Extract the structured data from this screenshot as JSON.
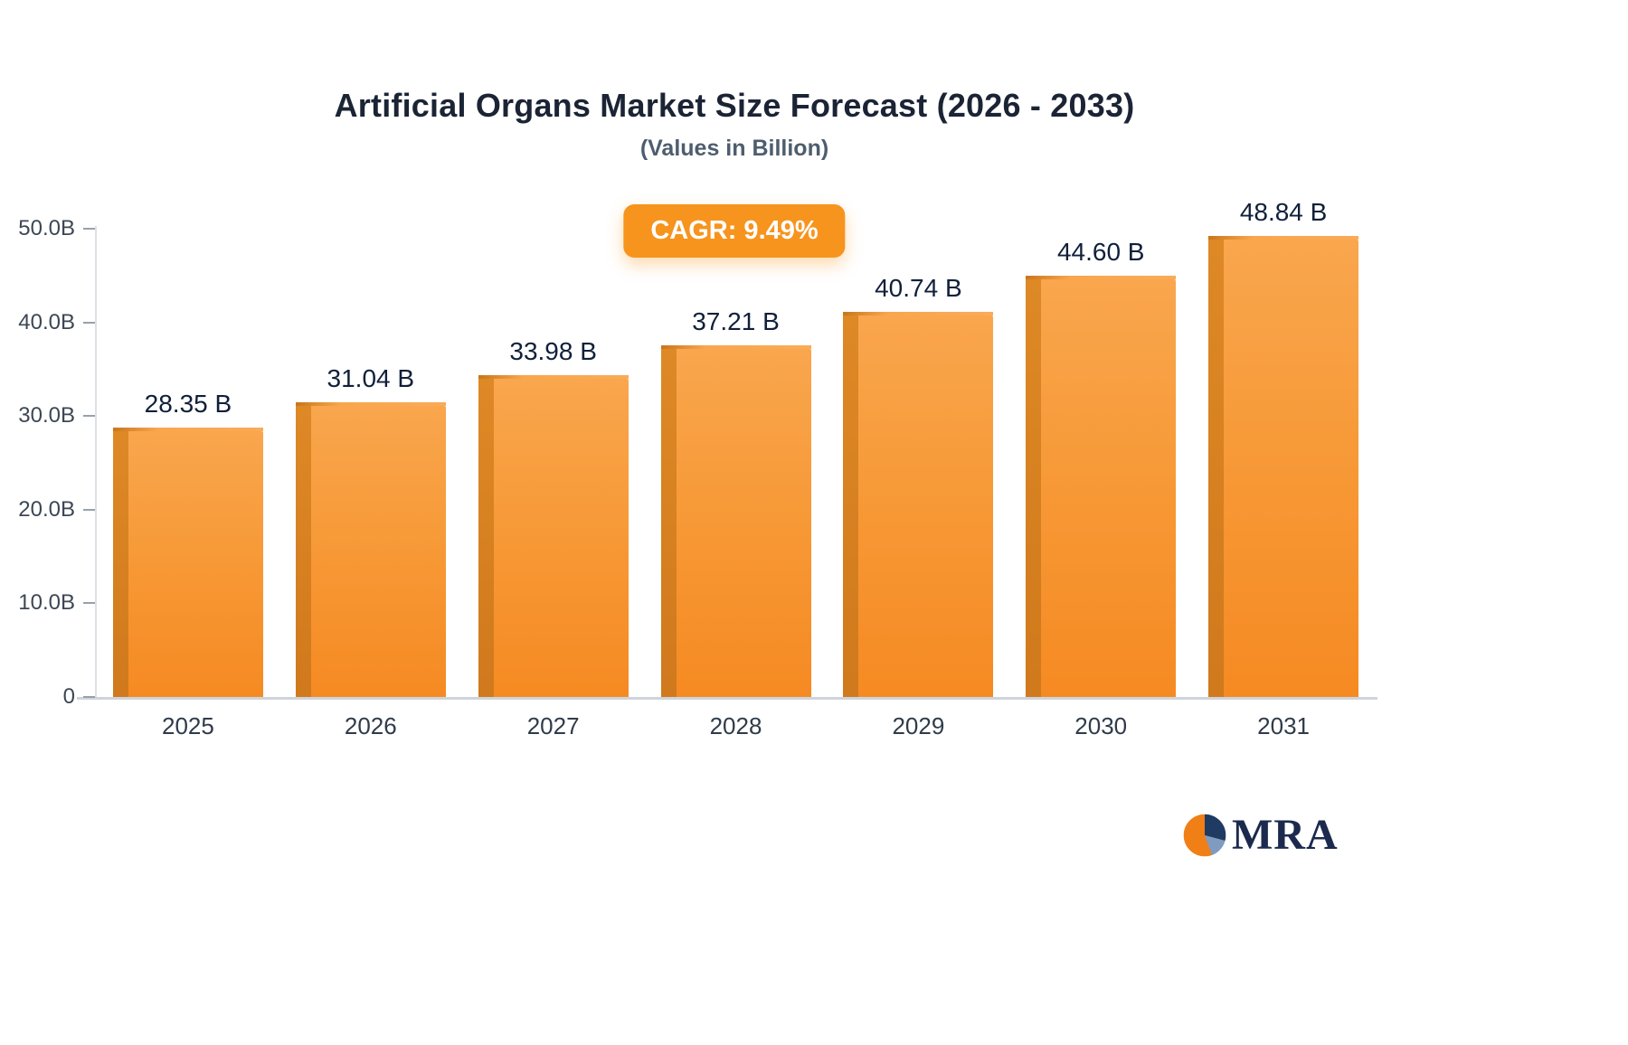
{
  "page": {
    "title": "Artificial Organs Market Size Forecast (2026 - 2033)",
    "subtitle": "(Values in Billion)",
    "cagr_badge": "CAGR: 9.49%"
  },
  "chart_data": {
    "type": "bar",
    "title": "Artificial Organs Market Size Forecast (2026 - 2033)",
    "subtitle": "(Values in Billion)",
    "annotation": "CAGR: 9.49%",
    "categories": [
      "2025",
      "2026",
      "2027",
      "2028",
      "2029",
      "2030",
      "2031"
    ],
    "values": [
      28.35,
      31.04,
      33.98,
      37.21,
      40.74,
      44.6,
      48.84
    ],
    "value_labels": [
      "28.35 B",
      "31.04 B",
      "33.98 B",
      "37.21 B",
      "40.74 B",
      "44.60 B",
      "48.84 B"
    ],
    "xlabel": "",
    "ylabel": "",
    "ylim": [
      0,
      50
    ],
    "y_ticks": [
      {
        "label": "0",
        "value": 0
      },
      {
        "label": "10.0B",
        "value": 10
      },
      {
        "label": "20.0B",
        "value": 20
      },
      {
        "label": "30.0B",
        "value": 30
      },
      {
        "label": "40.0B",
        "value": 40
      },
      {
        "label": "50.0B",
        "value": 50
      }
    ],
    "grid": false,
    "legend": false,
    "colors": {
      "bar_top": "#f9a64e",
      "bar_bottom": "#f68a22",
      "bar_edge": "#c9761c",
      "accent": "#f7941e",
      "label_text": "#10203a"
    }
  },
  "branding": {
    "logo_text": "MRA",
    "logo_colors": {
      "orange": "#f07f16",
      "navy": "#1f3b63",
      "steel_blue": "#7f9cc0"
    }
  }
}
